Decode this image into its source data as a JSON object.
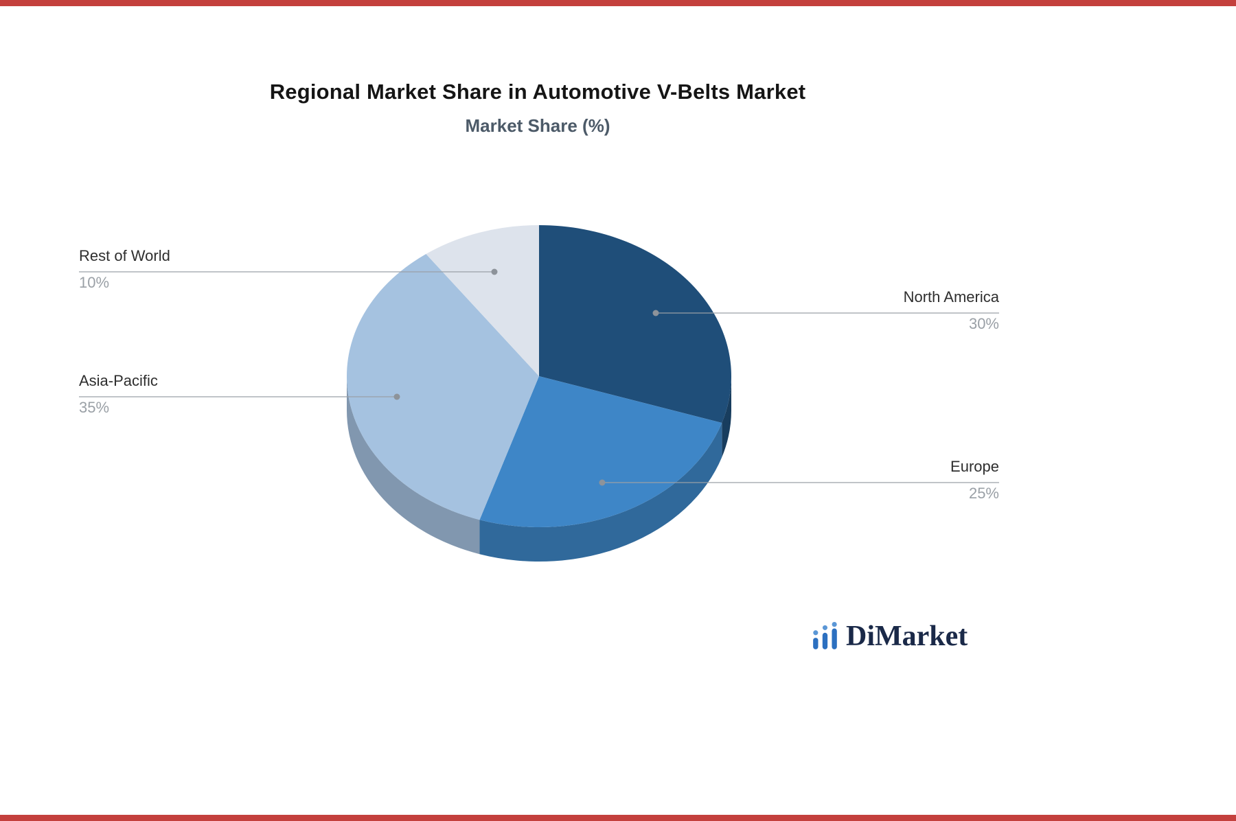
{
  "page": {
    "accent_border_color": "#c4403d",
    "brand": {
      "name": "DiMarket",
      "icon": "bar-chart-logo-icon",
      "text_color": "#1a2948",
      "icon_bar_color": "#2c70c0",
      "icon_dot_color": "#5b97d6"
    }
  },
  "chart_data": {
    "type": "pie",
    "style": "3d",
    "title": "Regional Market Share in Automotive V-Belts Market",
    "subtitle": "Market Share (%)",
    "unit": "%",
    "direction": "clockwise",
    "start_angle_deg": -90,
    "labels": [
      "North America",
      "Europe",
      "Asia-Pacific",
      "Rest of World"
    ],
    "values": [
      30,
      25,
      35,
      10
    ],
    "display_values": [
      "30%",
      "25%",
      "35%",
      "10%"
    ],
    "colors": [
      "#1f4e79",
      "#3e86c7",
      "#a5c2e0",
      "#dde3ec"
    ],
    "leader_line_color": "#9aa0a6",
    "leader_dot_color": "#8d939a",
    "label_color": "#2e2e2e",
    "value_color": "#9aa0a6",
    "legend_position": "callout-labels",
    "grid": false
  }
}
